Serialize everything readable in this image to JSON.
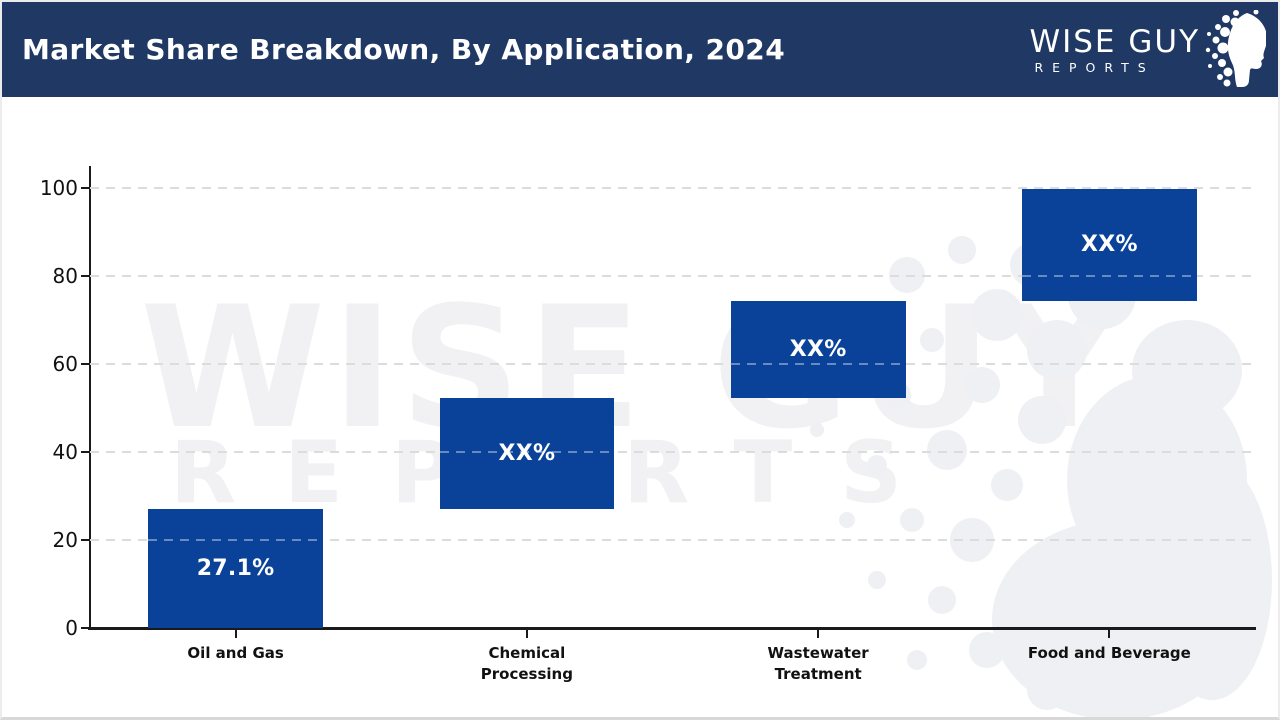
{
  "header": {
    "title": "Market Share Breakdown, By Application, 2024",
    "bg_color": "#1f3864"
  },
  "logo": {
    "name": "Wise Guy Reports",
    "line1": "WISE GUY",
    "line2": "REPORTS"
  },
  "watermark": {
    "line1": "WISE GUY",
    "line2": "REPORTS"
  },
  "chart_data": {
    "type": "bar",
    "variant": "floating-segment (waterfall style, cumulative to 100%)",
    "title": "Market Share Breakdown, By Application, 2024",
    "categories": [
      "Oil and Gas",
      "Chemical\nProcessing",
      "Wastewater\nTreatment",
      "Food and Beverage"
    ],
    "segments": [
      {
        "category": "Oil and Gas",
        "from": 0,
        "to": 27.1,
        "label": "27.1%"
      },
      {
        "category": "Chemical Processing",
        "from": 27.1,
        "to": 52.3,
        "label": "XX%"
      },
      {
        "category": "Wastewater Treatment",
        "from": 52.3,
        "to": 74.3,
        "label": "XX%"
      },
      {
        "category": "Food and Beverage",
        "from": 74.3,
        "to": 99.8,
        "label": "XX%"
      }
    ],
    "xlabel": "",
    "ylabel": "",
    "ylim": [
      0,
      100
    ],
    "yticks": [
      0,
      20,
      40,
      60,
      80,
      100
    ],
    "grid": "horizontal dashed",
    "legend": "none",
    "bar_color": "#0a4299",
    "value_label_color": "#ffffff",
    "axis_color": "#1a1a1a"
  }
}
